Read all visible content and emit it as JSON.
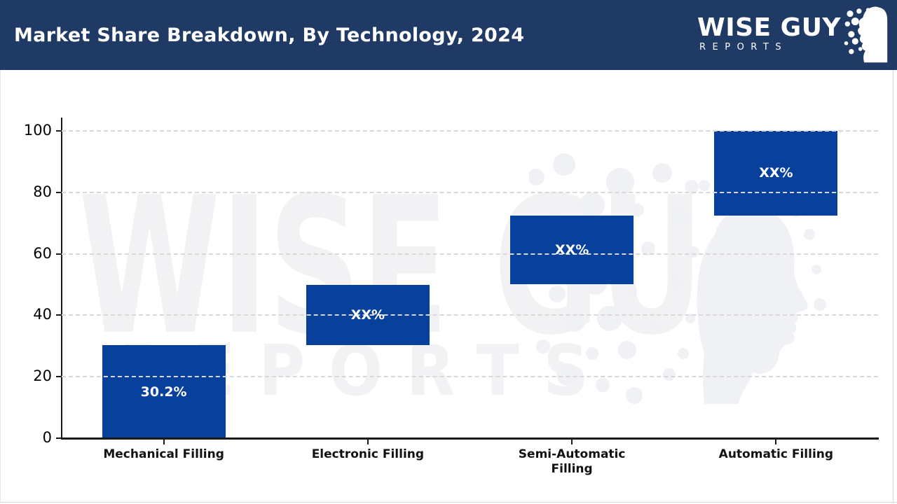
{
  "header": {
    "bg_color": "#203A66",
    "title": "Market Share Breakdown, By Technology, 2024",
    "logo": {
      "brand": "WISE GUY",
      "sub": "REPORTS"
    }
  },
  "watermark": {
    "brand": "WISE GU",
    "sub": "REPORTS"
  },
  "chart_data": {
    "type": "bar",
    "subtype": "floating-segment-breakdown",
    "title": "Market Share Breakdown, By Technology, 2024",
    "categories": [
      "Mechanical Filling",
      "Electronic Filling",
      "Semi-Automatic Filling",
      "Automatic Filling"
    ],
    "series": [
      {
        "name": "Mechanical Filling",
        "start": 0,
        "end": 30.2,
        "label": "30.2%"
      },
      {
        "name": "Electronic Filling",
        "start": 30.2,
        "end": 50,
        "label": "XX%"
      },
      {
        "name": "Semi-Automatic Filling",
        "start": 50,
        "end": 72.5,
        "label": "XX%"
      },
      {
        "name": "Automatic Filling",
        "start": 72.5,
        "end": 100,
        "label": "XX%"
      }
    ],
    "y_ticks": [
      0,
      20,
      40,
      60,
      80,
      100
    ],
    "ylim": [
      0,
      100
    ],
    "grid": true,
    "legend": false,
    "bar_color": "#08419C",
    "bar_label_color": "#ffffff",
    "gridline_color": "#d8d8d8",
    "axis_color": "#1a1a1a",
    "tick_label_color": "#000000"
  }
}
